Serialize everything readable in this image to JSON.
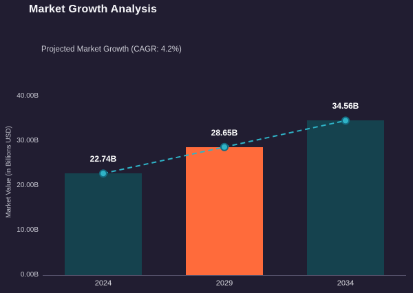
{
  "chart_data": {
    "type": "bar",
    "title": "Market Growth Analysis",
    "subtitle": "Projected Market Growth (CAGR: 4.2%)",
    "categories": [
      "2024",
      "2029",
      "2034"
    ],
    "values": [
      22.74,
      28.65,
      34.56
    ],
    "value_labels": [
      "22.74B",
      "28.65B",
      "34.56B"
    ],
    "xlabel": "",
    "ylabel": "Market Value (in Billions USD)",
    "ylim": [
      0,
      40
    ],
    "ytick_labels": [
      "40.00B",
      "30.00B",
      "20.00B",
      "10.00B",
      "0.00B"
    ],
    "grid": false,
    "legend": false,
    "overlay_line": {
      "style": "dashed",
      "markers": true,
      "connects": "bar tops"
    },
    "bar_colors": [
      "#15424e",
      "#ff6b3b",
      "#15424e"
    ],
    "colors": {
      "background": "#211d31",
      "trend": "#2fb3c7",
      "marker_stroke": "#156a80",
      "title_text": "#f7f7fa",
      "muted_text": "#c9c9d2",
      "axis_line": "#55516a"
    }
  }
}
